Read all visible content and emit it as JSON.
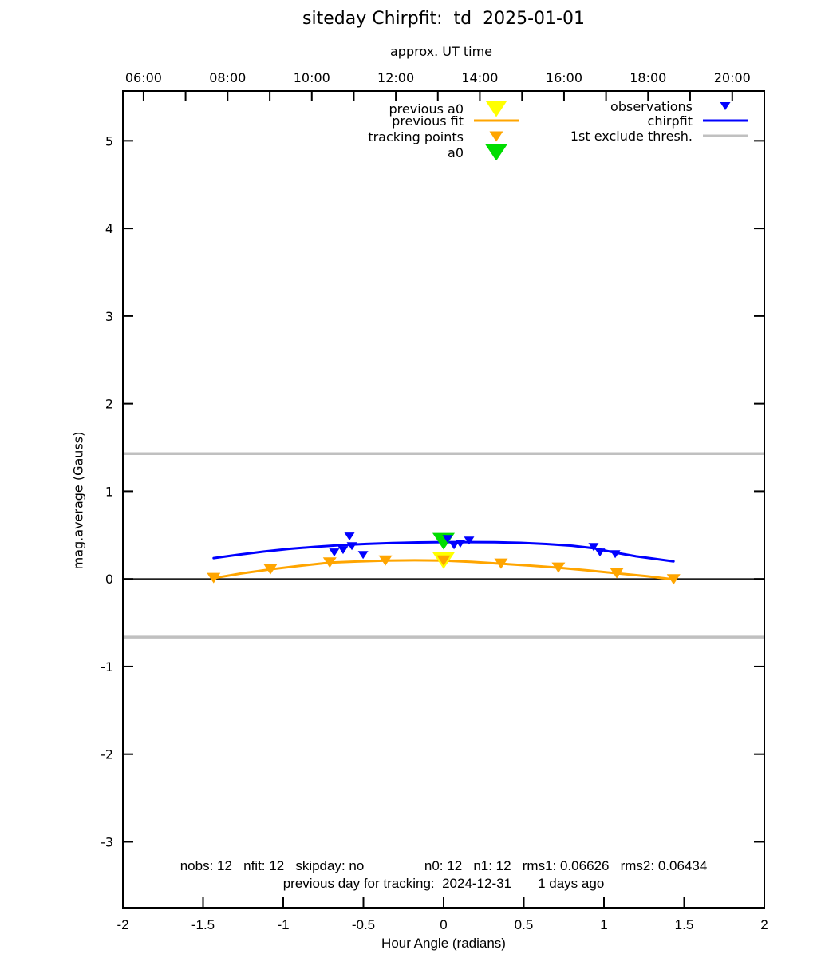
{
  "title": "siteday Chirpfit:  td  2025-01-01",
  "footer": {
    "stats_line1": "nobs: 12   nfit: 12   skipday: no                n0: 12   n1: 12   rms1: 0.06626   rms2: 0.06434",
    "stats_line2": "previous day for tracking:  2024-12-31       1 days ago"
  },
  "colors": {
    "blue": "#0000ff",
    "orange": "#ffa500",
    "yellow": "#ffff00",
    "green": "#00dd00",
    "gray": "#c0c0c0",
    "black": "#000000"
  },
  "legend": {
    "left": [
      {
        "key": "previous_a0",
        "label": "previous a0",
        "sample": "triangle-large",
        "color": "#ffff00"
      },
      {
        "key": "previous_fit",
        "label": "previous fit",
        "sample": "line",
        "color": "#ffa500"
      },
      {
        "key": "tracking_points",
        "label": "tracking points",
        "sample": "triangle-medium",
        "color": "#ffa500"
      },
      {
        "key": "a0",
        "label": "a0",
        "sample": "triangle-large",
        "color": "#00dd00"
      }
    ],
    "right": [
      {
        "key": "observations",
        "label": "observations",
        "sample": "triangle-small",
        "color": "#0000ff"
      },
      {
        "key": "chirpfit",
        "label": "chirpfit",
        "sample": "line",
        "color": "#0000ff"
      },
      {
        "key": "exclude_thresh",
        "label": "1st exclude thresh.",
        "sample": "line",
        "color": "#c0c0c0"
      }
    ]
  },
  "chart_data": {
    "type": "scatter",
    "title": "siteday Chirpfit:  td  2025-01-01",
    "xlabel": "Hour Angle (radians)",
    "ylabel": "mag.average (Gauss)",
    "x2label": "approx. UT time",
    "xlim": [
      -2,
      2
    ],
    "ylim": [
      -3.752,
      5.568
    ],
    "x_ticks": [
      -2,
      -1.5,
      -1,
      -0.5,
      0,
      0.5,
      1,
      1.5,
      2
    ],
    "x_tick_labels": [
      "-2",
      "-1.5",
      "-1",
      "-0.5",
      "0",
      "0.5",
      "1",
      "1.5",
      "2"
    ],
    "y_ticks": [
      -3,
      -2,
      -1,
      0,
      1,
      2,
      3,
      4,
      5
    ],
    "y_tick_labels": [
      "-3",
      "-2",
      "-1",
      "0",
      "1",
      "2",
      "3",
      "4",
      "5"
    ],
    "top_ticks": [
      {
        "x": -1.871,
        "label": "06:00"
      },
      {
        "x": -1.609,
        "label": ""
      },
      {
        "x": -1.347,
        "label": "08:00"
      },
      {
        "x": -1.084,
        "label": ""
      },
      {
        "x": -0.822,
        "label": "10:00"
      },
      {
        "x": -0.56,
        "label": ""
      },
      {
        "x": -0.298,
        "label": "12:00"
      },
      {
        "x": -0.036,
        "label": ""
      },
      {
        "x": 0.226,
        "label": "14:00"
      },
      {
        "x": 0.489,
        "label": ""
      },
      {
        "x": 0.751,
        "label": "16:00"
      },
      {
        "x": 1.013,
        "label": ""
      },
      {
        "x": 1.275,
        "label": "18:00"
      },
      {
        "x": 1.537,
        "label": ""
      },
      {
        "x": 1.8,
        "label": "20:00"
      }
    ],
    "zero_line_y": 0,
    "exclude_thresholds": [
      1.43,
      -0.665
    ],
    "series": [
      {
        "name": "previous fit",
        "type": "line",
        "color": "#ffa500",
        "width": 3,
        "points": [
          [
            -1.434,
            0.009
          ],
          [
            -1.26,
            0.063
          ],
          [
            -1.08,
            0.109
          ],
          [
            -0.9,
            0.148
          ],
          [
            -0.71,
            0.186
          ],
          [
            -0.54,
            0.198
          ],
          [
            -0.363,
            0.209
          ],
          [
            -0.18,
            0.212
          ],
          [
            0.0,
            0.209
          ],
          [
            0.18,
            0.194
          ],
          [
            0.358,
            0.173
          ],
          [
            0.54,
            0.152
          ],
          [
            0.716,
            0.128
          ],
          [
            0.9,
            0.097
          ],
          [
            1.08,
            0.064
          ],
          [
            1.26,
            0.032
          ],
          [
            1.434,
            -0.005
          ]
        ]
      },
      {
        "name": "chirpfit",
        "type": "line",
        "color": "#0000ff",
        "width": 3,
        "points": [
          [
            -1.434,
            0.237
          ],
          [
            -1.28,
            0.276
          ],
          [
            -1.12,
            0.312
          ],
          [
            -0.96,
            0.343
          ],
          [
            -0.8,
            0.366
          ],
          [
            -0.64,
            0.385
          ],
          [
            -0.48,
            0.399
          ],
          [
            -0.32,
            0.409
          ],
          [
            -0.16,
            0.416
          ],
          [
            0.0,
            0.419
          ],
          [
            0.16,
            0.42
          ],
          [
            0.32,
            0.418
          ],
          [
            0.48,
            0.411
          ],
          [
            0.64,
            0.398
          ],
          [
            0.8,
            0.378
          ],
          [
            0.935,
            0.35
          ],
          [
            1.07,
            0.3
          ],
          [
            1.2,
            0.258
          ],
          [
            1.32,
            0.228
          ],
          [
            1.434,
            0.2
          ]
        ]
      },
      {
        "name": "previous a0",
        "type": "points",
        "marker": "triangle-down",
        "size": "large",
        "color": "#ffff00",
        "points": [
          [
            0.0,
            0.209
          ]
        ]
      },
      {
        "name": "a0",
        "type": "points",
        "marker": "triangle-down",
        "size": "large",
        "color": "#00dd00",
        "points": [
          [
            0.0,
            0.428
          ]
        ]
      },
      {
        "name": "tracking points",
        "type": "points",
        "marker": "triangle-down",
        "size": "medium",
        "color": "#ffa500",
        "points": [
          [
            -1.434,
            0.009
          ],
          [
            -1.08,
            0.109
          ],
          [
            -0.71,
            0.186
          ],
          [
            -0.363,
            0.209
          ],
          [
            0.0,
            0.209
          ],
          [
            0.358,
            0.173
          ],
          [
            0.716,
            0.128
          ],
          [
            1.08,
            0.064
          ],
          [
            1.434,
            -0.005
          ]
        ]
      },
      {
        "name": "observations",
        "type": "points",
        "marker": "triangle-down",
        "size": "small",
        "color": "#0000ff",
        "points": [
          [
            -0.682,
            0.301
          ],
          [
            -0.627,
            0.328
          ],
          [
            -0.587,
            0.483
          ],
          [
            -0.572,
            0.373
          ],
          [
            -0.502,
            0.273
          ],
          [
            0.025,
            0.455
          ],
          [
            0.065,
            0.382
          ],
          [
            0.104,
            0.401
          ],
          [
            0.159,
            0.437
          ],
          [
            0.935,
            0.364
          ],
          [
            0.975,
            0.301
          ],
          [
            1.07,
            0.282
          ]
        ]
      }
    ]
  }
}
